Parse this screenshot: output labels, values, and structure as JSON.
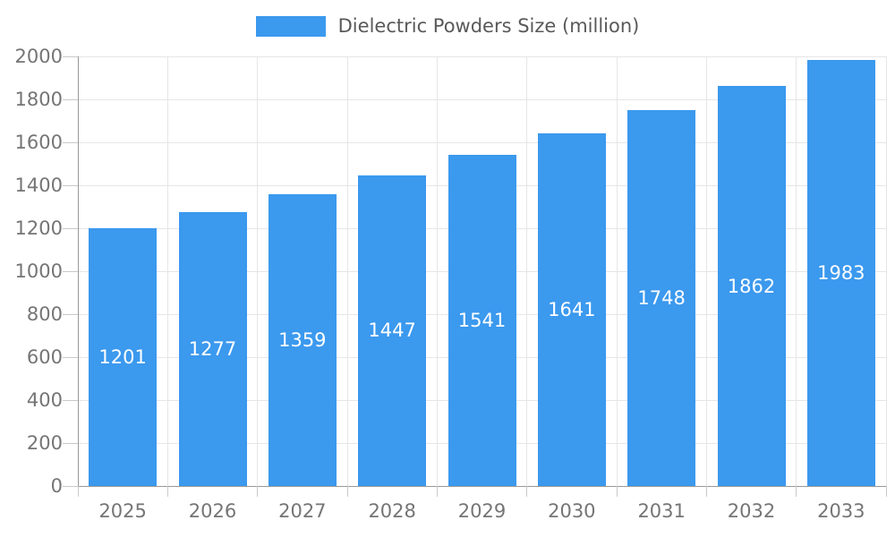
{
  "legend": {
    "label": "Dielectric Powders Size (million)"
  },
  "chart_data": {
    "type": "bar",
    "title": "Dielectric Powders Size (million)",
    "series_name": "Dielectric Powders Size (million)",
    "categories": [
      "2025",
      "2026",
      "2027",
      "2028",
      "2029",
      "2030",
      "2031",
      "2032",
      "2033"
    ],
    "values": [
      1201,
      1277,
      1359,
      1447,
      1541,
      1641,
      1748,
      1862,
      1983
    ],
    "value_labels": [
      "1201",
      "1277",
      "1359",
      "1447",
      "1541",
      "1641",
      "1748",
      "1862",
      "1983"
    ],
    "xlabel": "",
    "ylabel": "",
    "ylim": [
      0,
      2000
    ],
    "ytick_step": 200,
    "ytick_labels": [
      "0",
      "200",
      "400",
      "600",
      "800",
      "1000",
      "1200",
      "1400",
      "1600",
      "1800",
      "2000"
    ],
    "grid": true,
    "legend_position": "top-center",
    "bar_color": "#3b99ee",
    "value_label_color": "#ffffff"
  },
  "colors": {
    "background": "#ffffff",
    "bar": "#3b99ee",
    "grid_line": "#e6e6e6",
    "axis_line": "#999999",
    "tick_mark": "#c9c9c9",
    "axis_text": "#757575",
    "legend_text": "#595959",
    "bar_value_text": "#ffffff"
  }
}
